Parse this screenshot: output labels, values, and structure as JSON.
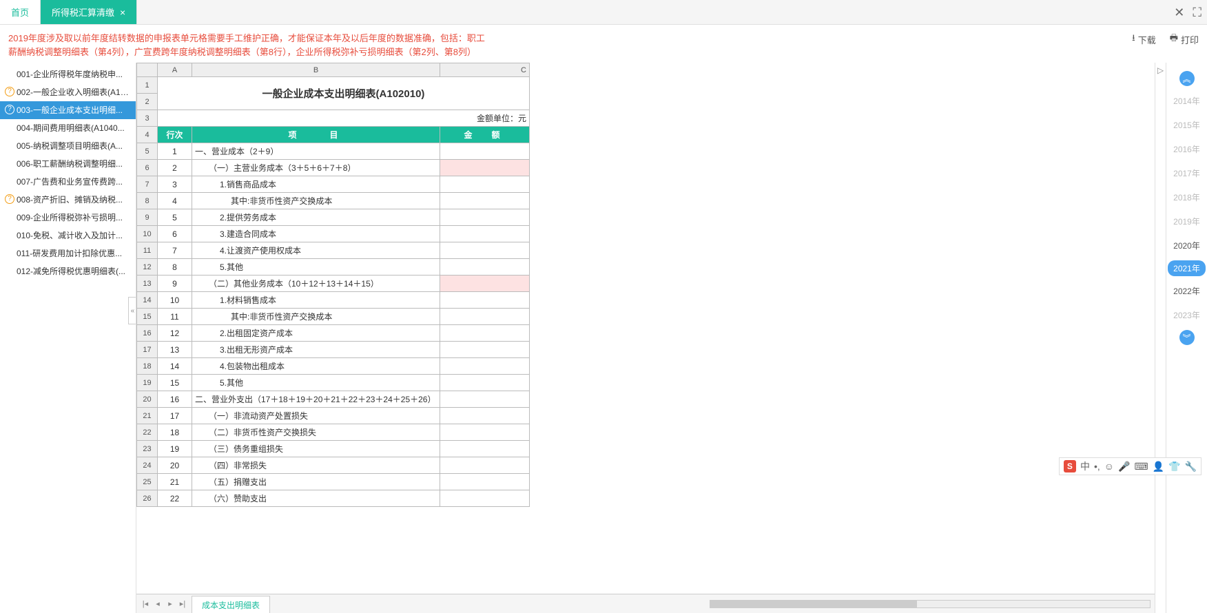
{
  "tabs": {
    "home": "首页",
    "active": "所得税汇算清缴"
  },
  "warning": "2019年度涉及取以前年度结转数据的申报表单元格需要手工维护正确，才能保证本年及以后年度的数据准确，包括：职工薪酬纳税调整明细表（第4列），广宣费跨年度纳税调整明细表（第8行），企业所得税弥补亏损明细表（第2列、第8列）",
  "toolbar": {
    "download": "下载",
    "print": "打印"
  },
  "nav": [
    {
      "label": "001-企业所得税年度纳税申...",
      "help": false
    },
    {
      "label": "002-一般企业收入明细表(A10...",
      "help": true
    },
    {
      "label": "003-一般企业成本支出明细...",
      "help": true,
      "active": true
    },
    {
      "label": "004-期间费用明细表(A1040...",
      "help": false
    },
    {
      "label": "005-纳税调整项目明细表(A...",
      "help": false
    },
    {
      "label": "006-职工薪酬纳税调整明细...",
      "help": false
    },
    {
      "label": "007-广告费和业务宣传费跨...",
      "help": false
    },
    {
      "label": "008-资产折旧、摊销及纳税...",
      "help": true
    },
    {
      "label": "009-企业所得税弥补亏损明...",
      "help": false
    },
    {
      "label": "010-免税、减计收入及加计...",
      "help": false
    },
    {
      "label": "011-研发费用加计扣除优惠...",
      "help": false
    },
    {
      "label": "012-减免所得税优惠明细表(...",
      "help": false
    }
  ],
  "columns": {
    "A": "A",
    "B": "B",
    "C": "C"
  },
  "title": "一般企业成本支出明细表(A102010)",
  "unit": "金额单位：元",
  "headers": {
    "row": "行次",
    "item": "项　　目",
    "amount": "金　额"
  },
  "rows": [
    {
      "n": "1",
      "item": "一、营业成本（2＋9）",
      "indent": 0,
      "pink": false
    },
    {
      "n": "2",
      "item": "（一）主营业务成本（3＋5＋6＋7＋8）",
      "indent": 1,
      "pink": true
    },
    {
      "n": "3",
      "item": "1.销售商品成本",
      "indent": 2,
      "pink": false
    },
    {
      "n": "4",
      "item": "其中:非货币性资产交换成本",
      "indent": 3,
      "pink": false
    },
    {
      "n": "5",
      "item": "2.提供劳务成本",
      "indent": 2,
      "pink": false
    },
    {
      "n": "6",
      "item": "3.建造合同成本",
      "indent": 2,
      "pink": false
    },
    {
      "n": "7",
      "item": "4.让渡资产使用权成本",
      "indent": 2,
      "pink": false
    },
    {
      "n": "8",
      "item": "5.其他",
      "indent": 2,
      "pink": false
    },
    {
      "n": "9",
      "item": "（二）其他业务成本（10＋12＋13＋14＋15）",
      "indent": 1,
      "pink": true
    },
    {
      "n": "10",
      "item": "1.材料销售成本",
      "indent": 2,
      "pink": false
    },
    {
      "n": "11",
      "item": "其中:非货币性资产交换成本",
      "indent": 3,
      "pink": false
    },
    {
      "n": "12",
      "item": "2.出租固定资产成本",
      "indent": 2,
      "pink": false
    },
    {
      "n": "13",
      "item": "3.出租无形资产成本",
      "indent": 2,
      "pink": false
    },
    {
      "n": "14",
      "item": "4.包装物出租成本",
      "indent": 2,
      "pink": false
    },
    {
      "n": "15",
      "item": "5.其他",
      "indent": 2,
      "pink": false
    },
    {
      "n": "16",
      "item": "二、营业外支出（17＋18＋19＋20＋21＋22＋23＋24＋25＋26）",
      "indent": 0,
      "pink": false
    },
    {
      "n": "17",
      "item": "（一）非流动资产处置损失",
      "indent": 1,
      "pink": false
    },
    {
      "n": "18",
      "item": "（二）非货币性资产交换损失",
      "indent": 1,
      "pink": false
    },
    {
      "n": "19",
      "item": "（三）债务重组损失",
      "indent": 1,
      "pink": false
    },
    {
      "n": "20",
      "item": "（四）非常损失",
      "indent": 1,
      "pink": false
    },
    {
      "n": "21",
      "item": "（五）捐赠支出",
      "indent": 1,
      "pink": false
    },
    {
      "n": "22",
      "item": "（六）赞助支出",
      "indent": 1,
      "pink": false
    }
  ],
  "sheetTab": "成本支出明细表",
  "years": [
    "2014年",
    "2015年",
    "2016年",
    "2017年",
    "2018年",
    "2019年",
    "2020年",
    "2021年",
    "2022年",
    "2023年"
  ],
  "yearActive": "2021年",
  "yearsNear": [
    "2020年",
    "2022年"
  ],
  "ime": {
    "logo": "S",
    "lang": "中"
  }
}
